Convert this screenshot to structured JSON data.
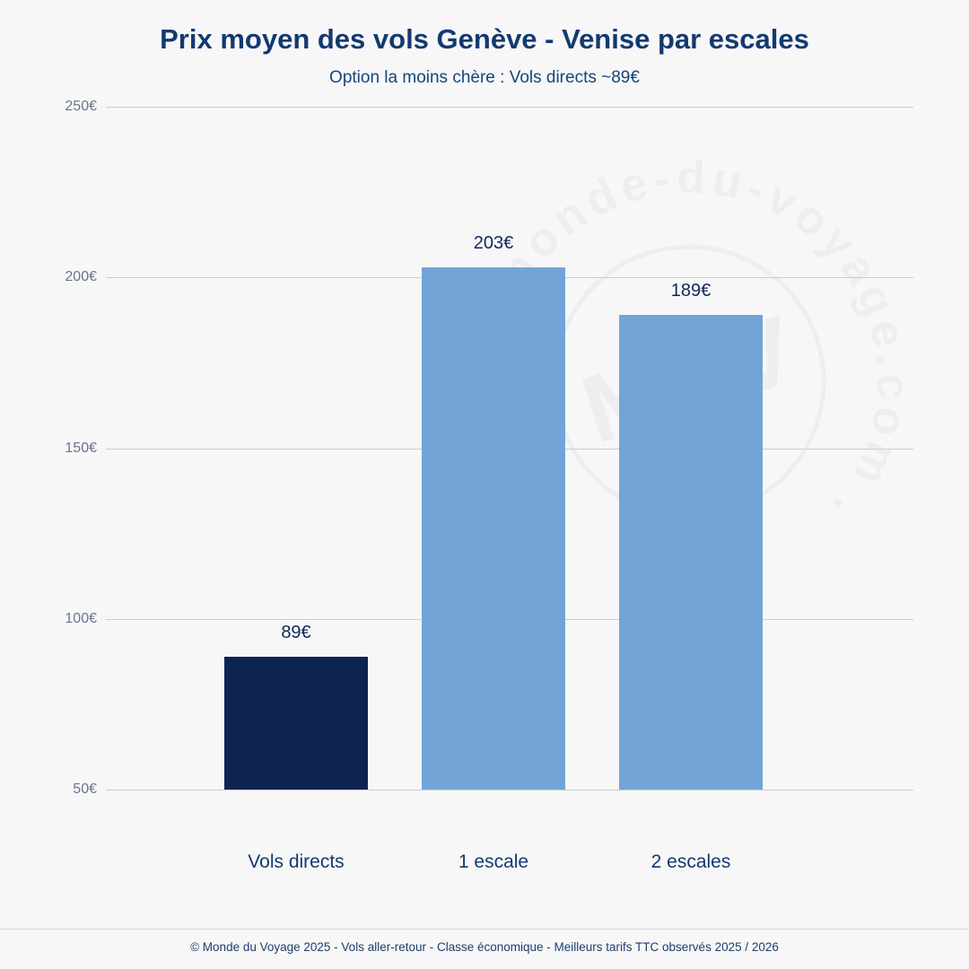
{
  "page": {
    "footer": "© Monde du Voyage 2025 - Vols aller-retour - Classe économique - Meilleurs tarifs TTC observés 2025 / 2026"
  },
  "watermark": {
    "ring_text": "www.monde-du-voyage.com .",
    "center_text": "MDV"
  },
  "chart_data": {
    "type": "bar",
    "title": "Prix moyen des vols Genève - Venise par escales",
    "subtitle": "Option la moins chère : Vols directs ~89€",
    "categories": [
      "Vols directs",
      "1 escale",
      "2 escales"
    ],
    "values": [
      89,
      203,
      189
    ],
    "value_labels": [
      "89€",
      "203€",
      "189€"
    ],
    "bar_colors": [
      "#0d2453",
      "#72a4d8",
      "#72a4d8"
    ],
    "ylim": [
      50,
      250
    ],
    "yticks": [
      50,
      100,
      150,
      200,
      250
    ],
    "ytick_labels": [
      "50€",
      "100€",
      "150€",
      "200€",
      "250€"
    ],
    "xlabel": "",
    "ylabel": "",
    "grid": true,
    "legend": false,
    "colors": {
      "title": "#133a70",
      "subtitle": "#16457c",
      "gridline": "#c9cdd7",
      "tick_label": "#6b7490",
      "dark_bar": "#0d2453",
      "light_bar": "#72a4d8"
    }
  }
}
